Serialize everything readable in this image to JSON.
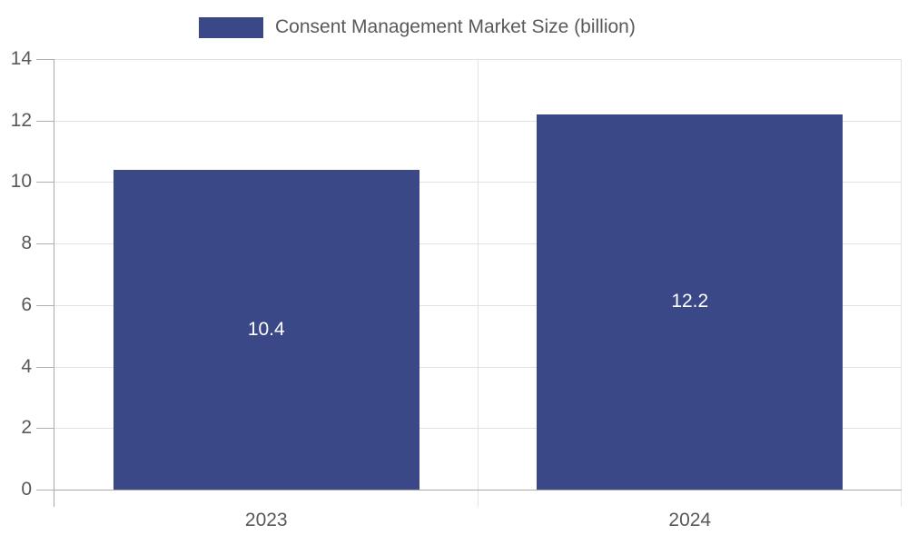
{
  "legend": {
    "label": "Consent Management Market Size (billion)"
  },
  "chart_data": {
    "type": "bar",
    "title": "Consent Management Market Size (billion)",
    "categories": [
      "2023",
      "2024"
    ],
    "series": [
      {
        "name": "Consent Management Market Size (billion)",
        "values": [
          10.4,
          12.2
        ]
      }
    ],
    "value_labels": [
      "10.4",
      "12.2"
    ],
    "xlabel": "",
    "ylabel": "",
    "ylim": [
      0,
      14
    ],
    "ytick_step": 2,
    "yticks": [
      0,
      2,
      4,
      6,
      8,
      10,
      12,
      14
    ],
    "grid": true,
    "legend_position": "top-center",
    "value_label_position": "inside-center",
    "colors": {
      "bar": "#3B4888",
      "grid": "#E2E2E2",
      "axis": "#A9A9A9",
      "tick": "#B0B0B0",
      "boundary_tick": "#E3E3E3",
      "label_text": "#595959",
      "value_label": "#FFFFFF",
      "background": "#FFFFFF"
    }
  }
}
